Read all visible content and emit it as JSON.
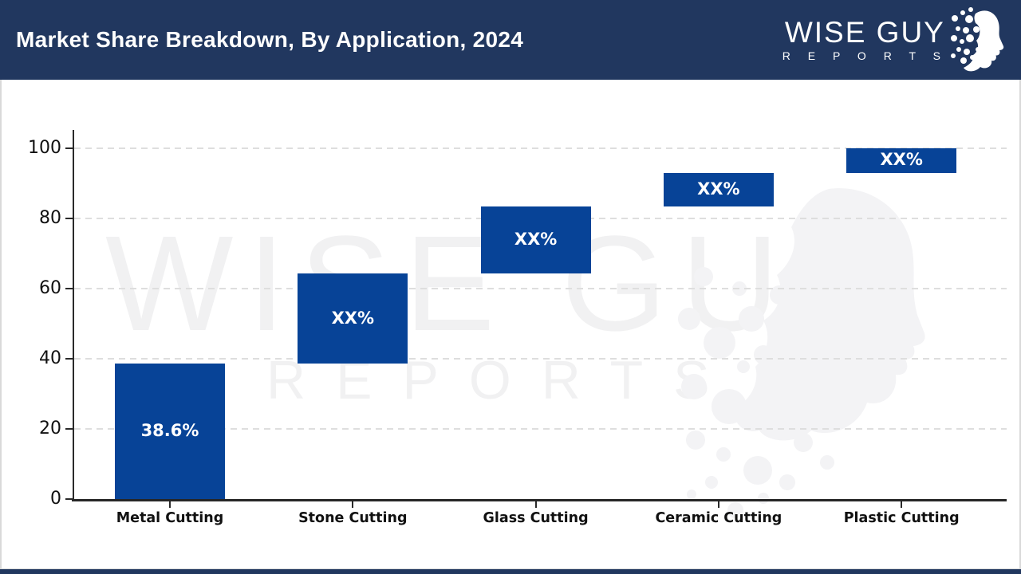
{
  "header": {
    "title": "Market Share Breakdown, By Application, 2024",
    "logo": {
      "line1": "WISE GUY",
      "line2": "R E P O R T S"
    }
  },
  "watermark": {
    "line1": "WISE GUY",
    "line2": "REPORTS"
  },
  "chart_data": {
    "type": "bar",
    "subtype": "waterfall",
    "title": "Market Share Breakdown, By Application, 2024",
    "categories": [
      "Metal Cutting",
      "Stone Cutting",
      "Glass Cutting",
      "Ceramic Cutting",
      "Plastic Cutting"
    ],
    "segments": [
      {
        "category": "Metal Cutting",
        "start": 0,
        "end": 38.6,
        "label": "38.6%"
      },
      {
        "category": "Stone Cutting",
        "start": 38.6,
        "end": 64.3,
        "label": "XX%"
      },
      {
        "category": "Glass Cutting",
        "start": 64.3,
        "end": 83.4,
        "label": "XX%"
      },
      {
        "category": "Ceramic Cutting",
        "start": 83.4,
        "end": 93.0,
        "label": "XX%"
      },
      {
        "category": "Plastic Cutting",
        "start": 93.0,
        "end": 100.0,
        "label": "XX%"
      }
    ],
    "y_ticks": [
      0,
      20,
      40,
      60,
      80,
      100
    ],
    "ylim": [
      0,
      100
    ],
    "xlabel": "",
    "ylabel": "",
    "grid": "dashed-horizontal",
    "legend": "none",
    "bar_color": "#074397",
    "bar_label_color": "#ffffff",
    "axis_color": "#262626",
    "header_bg_color": "#21375f"
  }
}
